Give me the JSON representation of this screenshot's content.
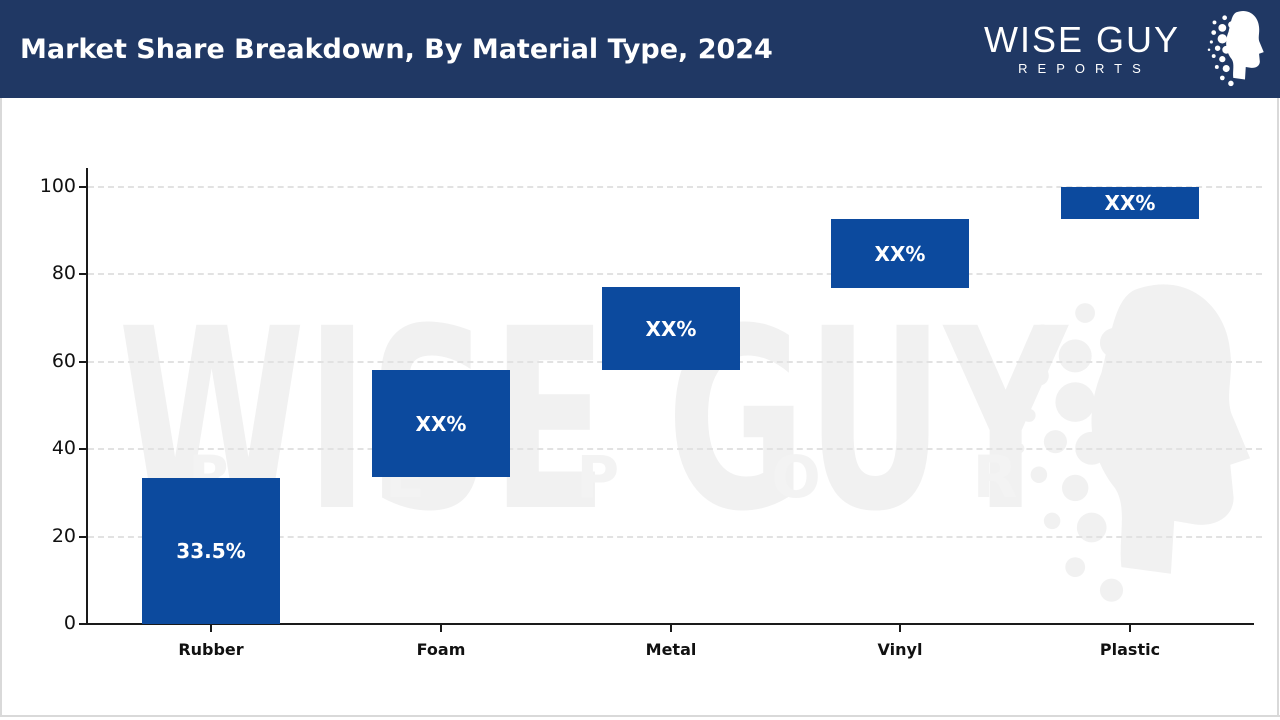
{
  "header": {
    "title": "Market Share Breakdown, By Material Type, 2024",
    "logo": {
      "line1": "WISE GUY",
      "line2": "REPORTS"
    }
  },
  "watermark": {
    "line1": "WISE GUY",
    "line2": "R E P O R T S"
  },
  "colors": {
    "header_bg": "#203864",
    "bar": "#0c4a9e",
    "bar_label": "#ffffff",
    "gridline": "#e2e2e2",
    "axis": "#1a1a1a",
    "watermark": "#f1f1f1",
    "frame": "#d9d9d9"
  },
  "chart_data": {
    "type": "bar",
    "subtype": "waterfall-cumulative",
    "title": "Market Share Breakdown, By Material Type, 2024",
    "categories": [
      "Rubber",
      "Foam",
      "Metal",
      "Vinyl",
      "Plastic"
    ],
    "segments": [
      {
        "category": "Rubber",
        "start": 0,
        "end": 33.5,
        "label": "33.5%"
      },
      {
        "category": "Foam",
        "start": 33.5,
        "end": 58,
        "label": "XX%"
      },
      {
        "category": "Metal",
        "start": 58,
        "end": 77,
        "label": "XX%"
      },
      {
        "category": "Vinyl",
        "start": 77,
        "end": 92.7,
        "label": "XX%"
      },
      {
        "category": "Plastic",
        "start": 92.7,
        "end": 100,
        "label": "XX%"
      }
    ],
    "xlabel": "",
    "ylabel": "",
    "ylim": [
      0,
      105
    ],
    "yticks": [
      0,
      20,
      40,
      60,
      80,
      100
    ],
    "grid": "horizontal-dashed",
    "legend": "none",
    "bar_color": "#0c4a9e",
    "label_color": "#ffffff"
  }
}
